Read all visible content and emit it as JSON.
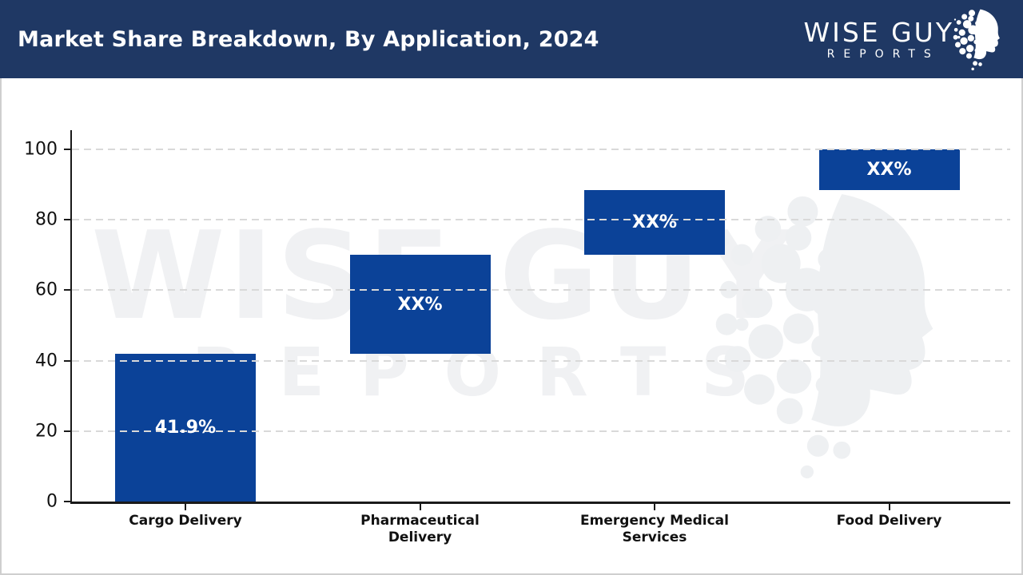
{
  "header": {
    "title": "Market Share Breakdown, By Application, 2024",
    "logo": {
      "line1": "WISE GUY",
      "line2": "REPORTS"
    }
  },
  "watermark": {
    "line1": "WISE GUY",
    "line2": "REPORTS"
  },
  "colors": {
    "header_bg": "#1f3864",
    "bar": "#0b4298",
    "grid": "#d9d9d9",
    "axis": "#1a1a1a",
    "watermark": "#f0f1f3",
    "card_border": "#cfcfcf",
    "bar_label": "#ffffff"
  },
  "chart_data": {
    "type": "bar",
    "subtype": "waterfall (floating stacked segments summing to 100%)",
    "title": "Market Share Breakdown, By Application, 2024",
    "categories": [
      "Cargo Delivery",
      "Pharmaceutical Delivery",
      "Emergency Medical Services",
      "Food Delivery"
    ],
    "segments": [
      {
        "category": "Cargo Delivery",
        "start": 0,
        "end": 41.9,
        "label": "41.9%"
      },
      {
        "category": "Pharmaceutical Delivery",
        "start": 41.9,
        "end": 70,
        "label": "XX%"
      },
      {
        "category": "Emergency Medical Services",
        "start": 70,
        "end": 88.4,
        "label": "XX%"
      },
      {
        "category": "Food Delivery",
        "start": 88.4,
        "end": 100,
        "label": "XX%"
      }
    ],
    "yticks": [
      0,
      20,
      40,
      60,
      80,
      100
    ],
    "ylim": [
      0,
      100
    ],
    "xlabel": "",
    "ylabel": "",
    "legend": "none",
    "grid": "horizontal dashed, drawn above bars",
    "bar_color": "#0b4298",
    "bar_label_color": "#ffffff"
  }
}
